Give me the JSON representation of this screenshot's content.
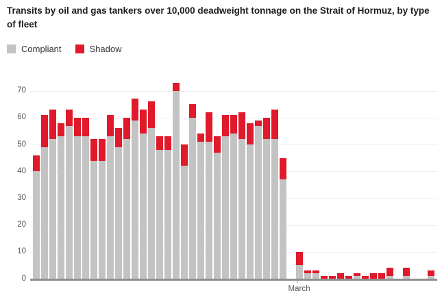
{
  "title": "Transits by oil and gas tankers over 10,000 deadweight tonnage on the Strait of Hormuz, by type of fleet",
  "legend": [
    {
      "label": "Compliant",
      "color": "#c3c3c3"
    },
    {
      "label": "Shadow",
      "color": "#e0192b"
    }
  ],
  "colors": {
    "compliant": "#c3c3c3",
    "shadow": "#e0192b",
    "axis": "#8f8f8f",
    "gridline": "#efefef",
    "tick_text": "#555555"
  },
  "chart_data": {
    "type": "bar",
    "stacked": true,
    "title": "Transits by oil and gas tankers over 10,000 deadweight tonnage on the Strait of Hormuz, by type of fleet",
    "xlabel": "",
    "ylabel": "",
    "ylim": [
      0,
      75
    ],
    "yticks": [
      0,
      10,
      20,
      30,
      40,
      50,
      60,
      70
    ],
    "grid": true,
    "legend_position": "top-left",
    "x_axis": {
      "tick_label": "March",
      "tick_bar_index": 33,
      "note": "daily bars; only the start of March is labeled on the x axis"
    },
    "series": [
      {
        "name": "Compliant",
        "color": "#c3c3c3",
        "values": [
          40,
          49,
          52,
          53,
          57,
          53,
          53,
          44,
          44,
          53,
          49,
          52,
          59,
          54,
          56,
          48,
          48,
          70,
          42,
          60,
          51,
          51,
          47,
          53,
          54,
          52,
          50,
          57,
          52,
          52,
          37,
          0,
          5,
          2,
          2,
          0,
          0,
          0,
          0,
          1,
          0,
          0,
          0,
          1,
          0,
          1,
          0,
          0,
          1
        ]
      },
      {
        "name": "Shadow",
        "color": "#e0192b",
        "values": [
          6,
          12,
          11,
          5,
          6,
          7,
          7,
          8,
          8,
          8,
          7,
          8,
          8,
          9,
          10,
          5,
          5,
          3,
          8,
          5,
          3,
          11,
          6,
          8,
          7,
          10,
          8,
          2,
          8,
          11,
          8,
          0,
          5,
          1,
          1,
          1,
          1,
          2,
          1,
          1,
          1,
          2,
          2,
          3,
          0,
          3,
          0,
          0,
          2
        ]
      }
    ],
    "totals": [
      46,
      61,
      63,
      58,
      63,
      60,
      60,
      52,
      52,
      61,
      56,
      60,
      67,
      63,
      66,
      53,
      53,
      73,
      50,
      65,
      54,
      62,
      53,
      61,
      61,
      62,
      58,
      59,
      60,
      63,
      45,
      0,
      10,
      3,
      3,
      1,
      1,
      2,
      1,
      2,
      1,
      2,
      2,
      4,
      0,
      4,
      0,
      0,
      3
    ]
  }
}
